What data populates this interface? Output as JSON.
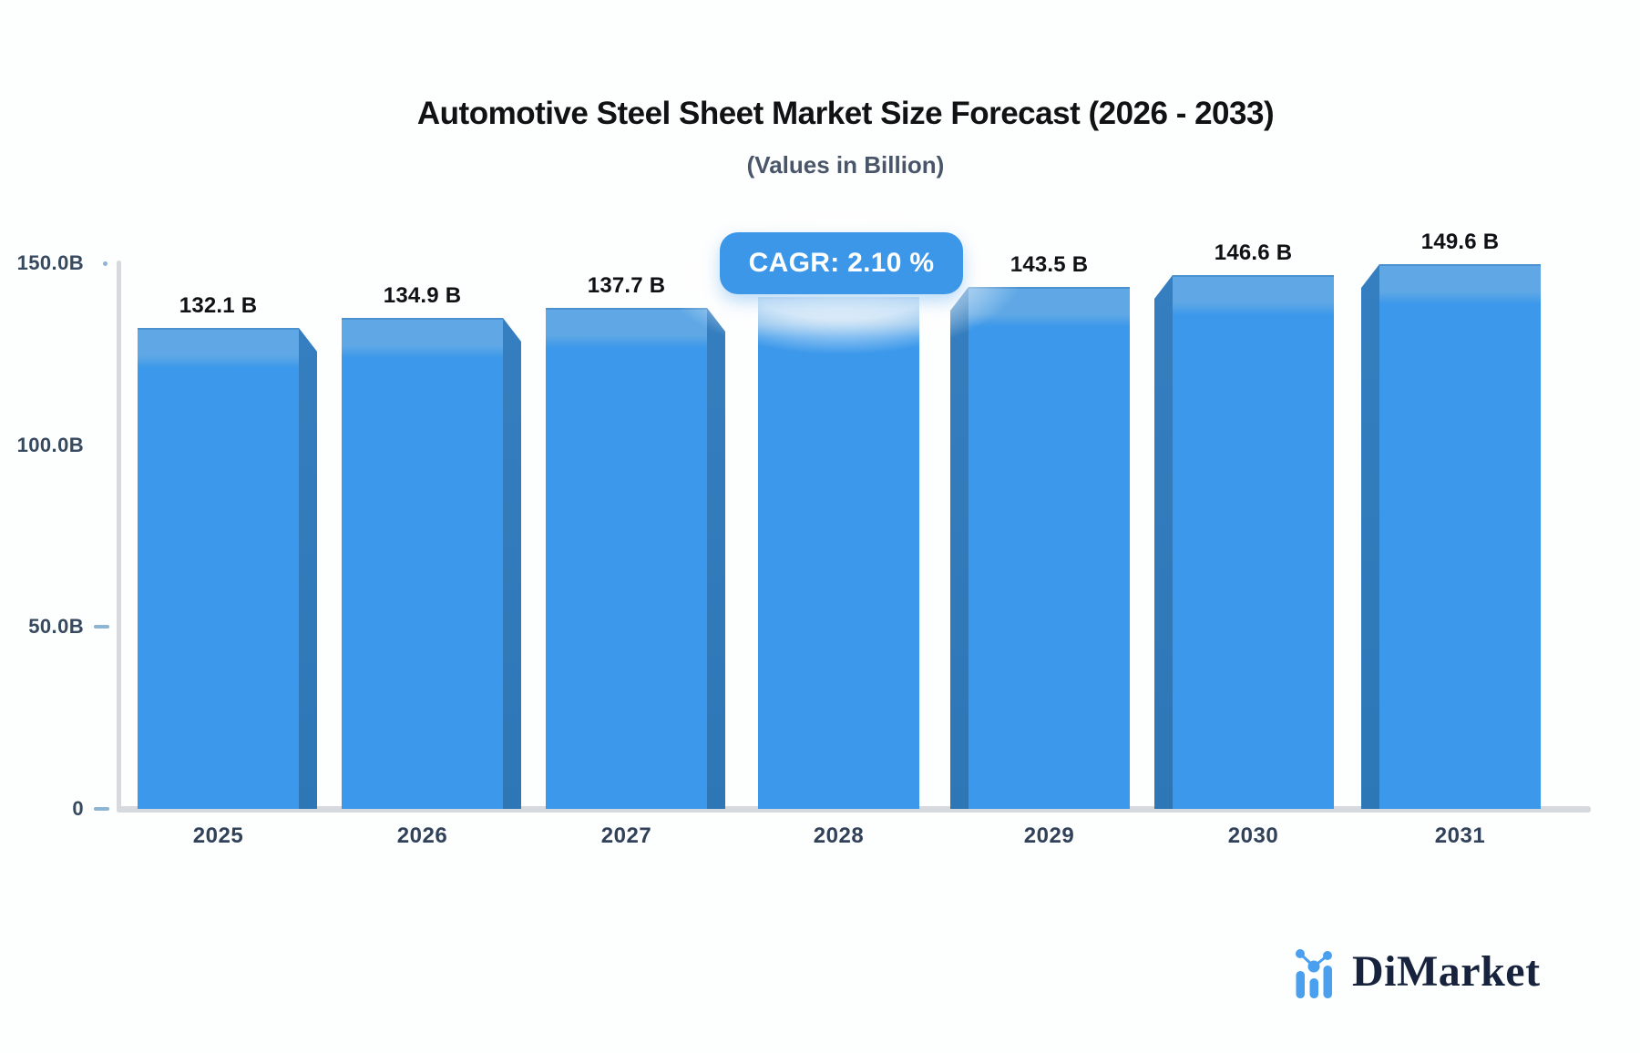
{
  "chart_data": {
    "type": "bar",
    "title": "Automotive Steel Sheet Market Size Forecast (2026 - 2033)",
    "subtitle": "(Values in Billion)",
    "categories": [
      "2025",
      "2026",
      "2027",
      "2028",
      "2029",
      "2030",
      "2031"
    ],
    "values": [
      132.1,
      134.9,
      137.7,
      140.6,
      143.5,
      146.6,
      149.6
    ],
    "value_labels": [
      "132.1 B",
      "134.9 B",
      "137.7 B",
      null,
      "143.5 B",
      "146.6 B",
      "149.6 B"
    ],
    "annotation": "CAGR: 2.10 %",
    "y_tick_labels": [
      "150.0B",
      "100.0B",
      "50.0B",
      "0"
    ],
    "ylim": [
      0,
      150
    ],
    "xlabel": "",
    "ylabel": "",
    "grid": false,
    "legend": false,
    "colors": {
      "bar_face": "#3b98ea",
      "bar_top_band": "#5fa8e5",
      "bar_side_top": "#357fc0",
      "bar_side": "#2d77b7",
      "badge_bg": "#3d97e9",
      "badge_text": "#ffffff",
      "axis_line": "#d6d9de",
      "tick": "#8fb3d2",
      "axis_label": "#36495e",
      "category_label": "#31415a",
      "value_label": "#0f1115",
      "title": "#101214",
      "subtitle": "#49566a"
    }
  },
  "branding": {
    "name": "DiMarket",
    "icon": "bar-chart-logo-icon",
    "icon_color": "#4aa0ef",
    "text_color": "#17233d"
  }
}
